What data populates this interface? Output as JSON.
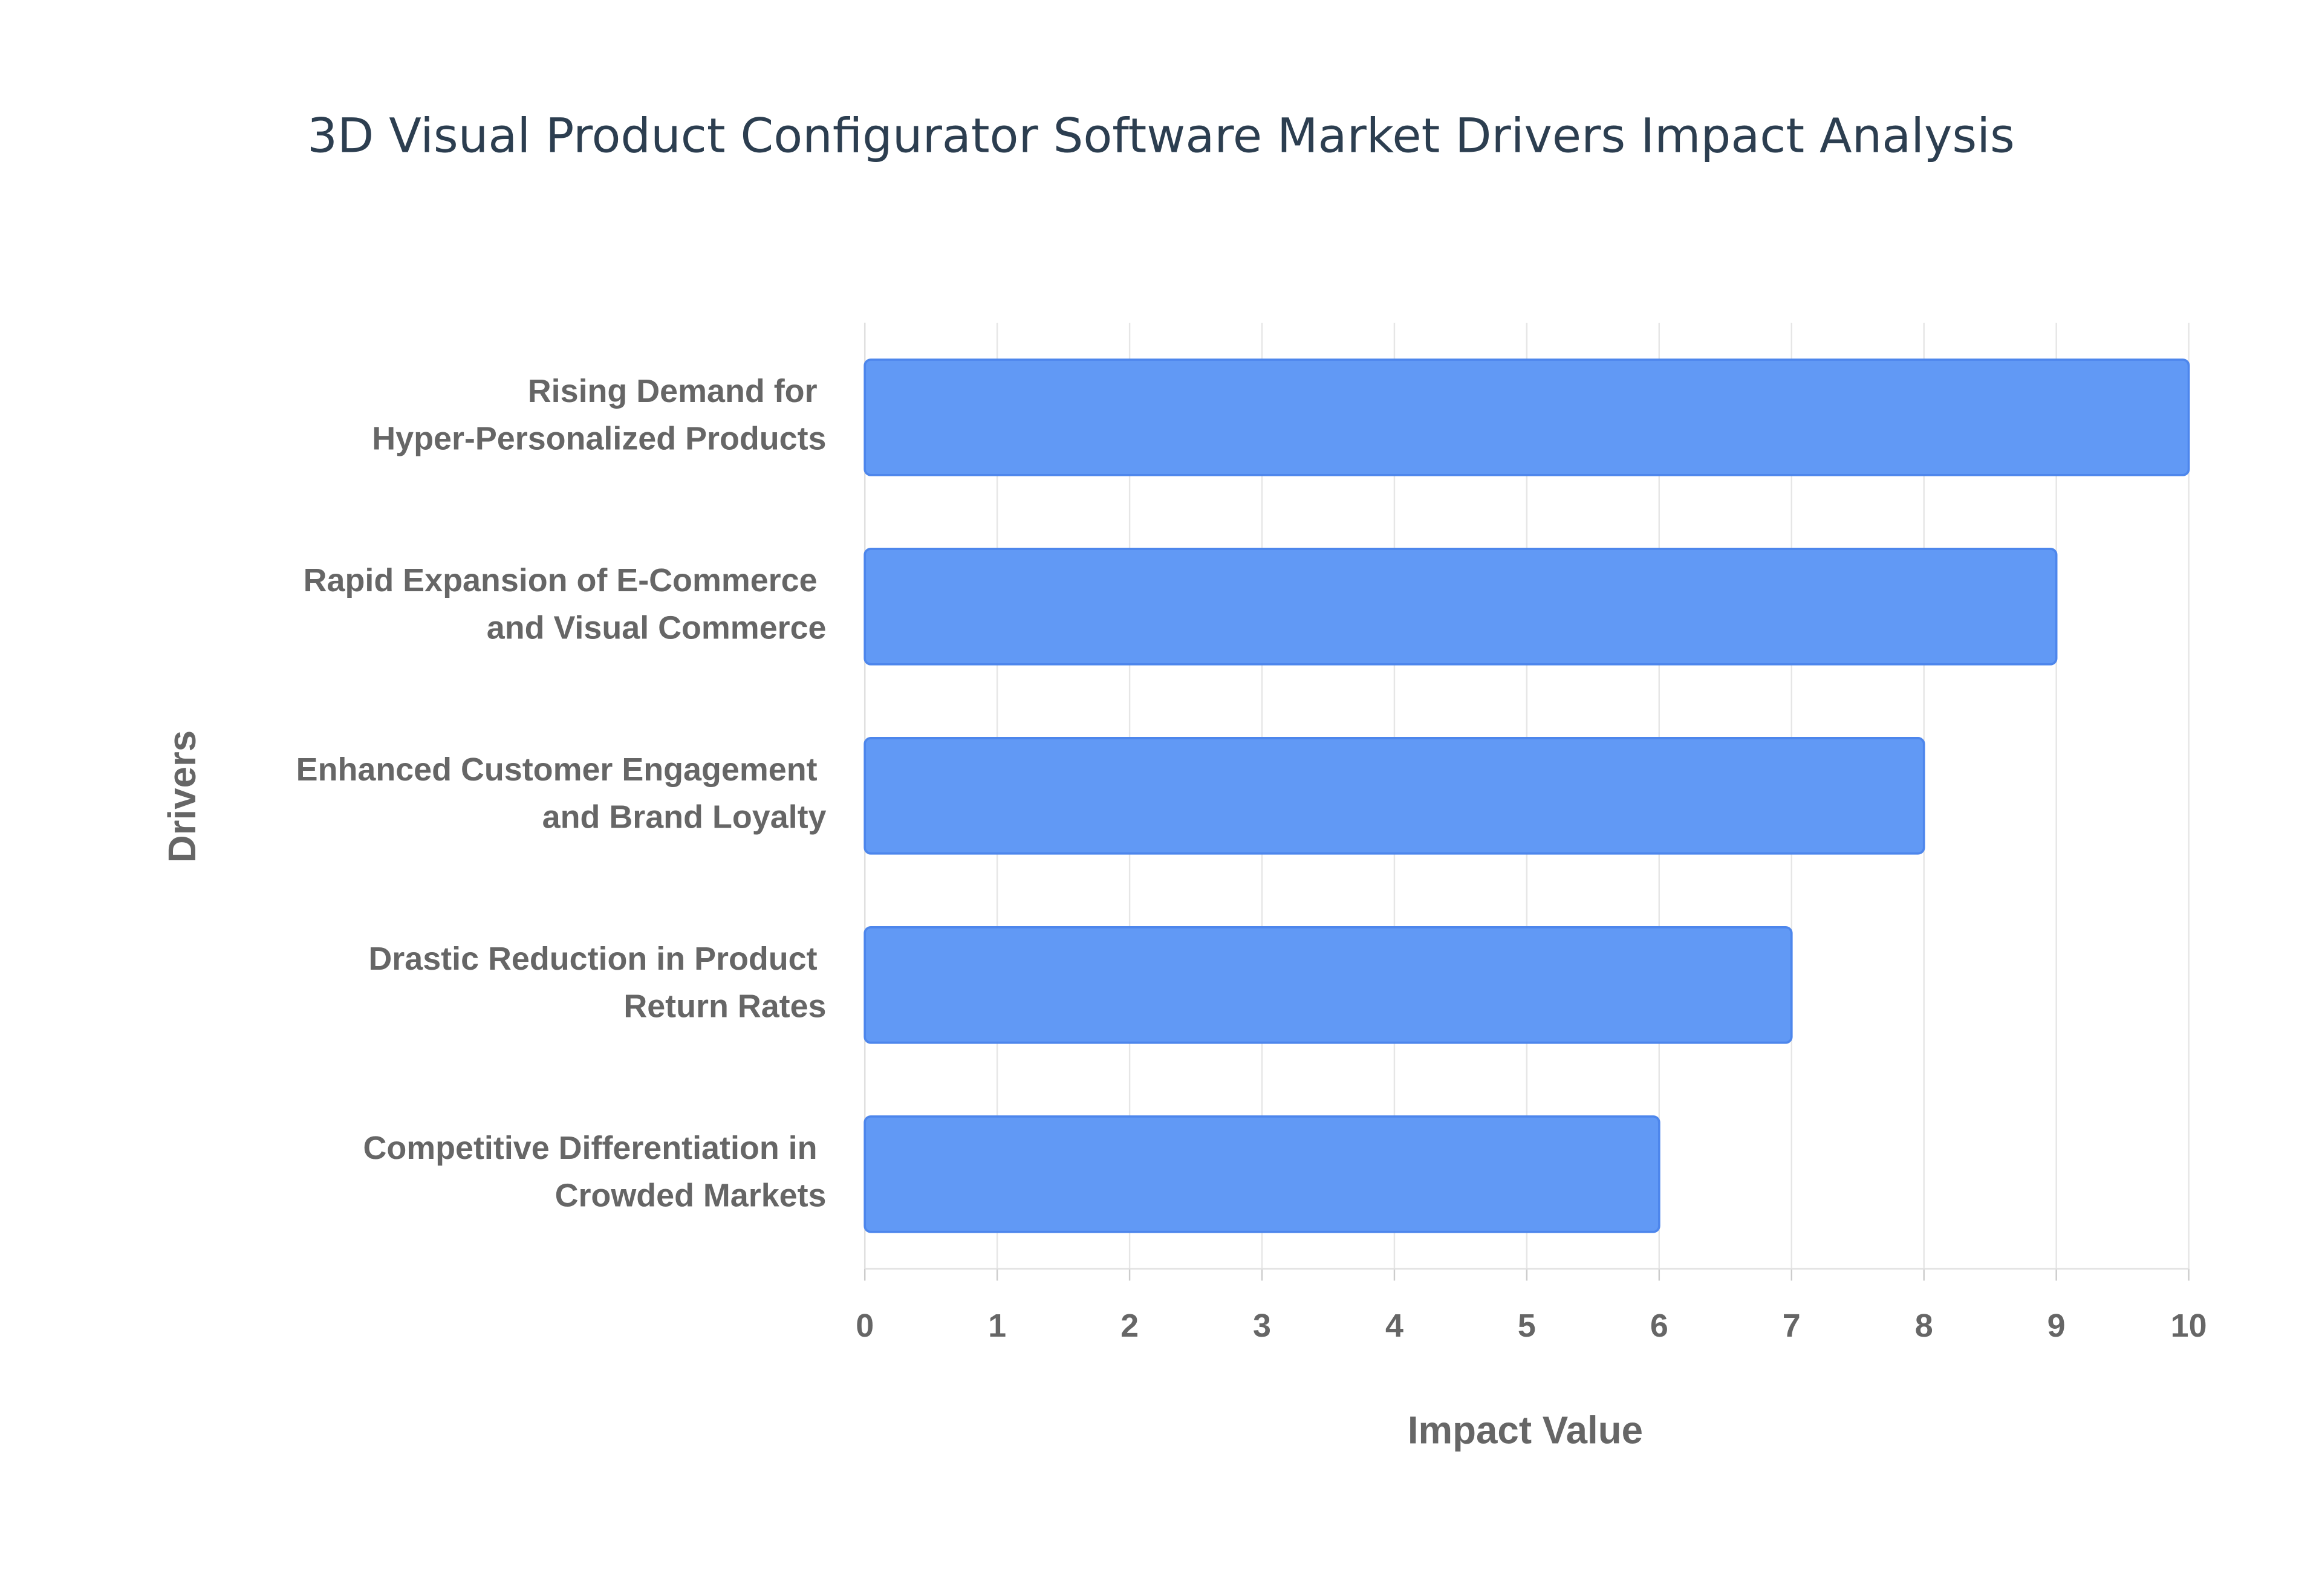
{
  "chart_data": {
    "type": "bar",
    "orientation": "horizontal",
    "title": "3D Visual Product Configurator Software Market Drivers Impact Analysis",
    "x_label": "Impact Value",
    "y_label": "Drivers",
    "categories": [
      "Rising Demand for Hyper-Personalized Products",
      "Rapid Expansion of E-Commerce and Visual Commerce",
      "Enhanced Customer Engagement and Brand Loyalty",
      "Drastic Reduction in Product Return Rates",
      "Competitive Differentiation in Crowded Markets"
    ],
    "values": [
      10,
      9,
      8,
      7,
      6
    ],
    "color": "#6199f5",
    "xlim": [
      0,
      10
    ],
    "xticks": [
      0,
      1,
      2,
      3,
      4,
      5,
      6,
      7,
      8,
      9,
      10
    ],
    "grid": true
  }
}
